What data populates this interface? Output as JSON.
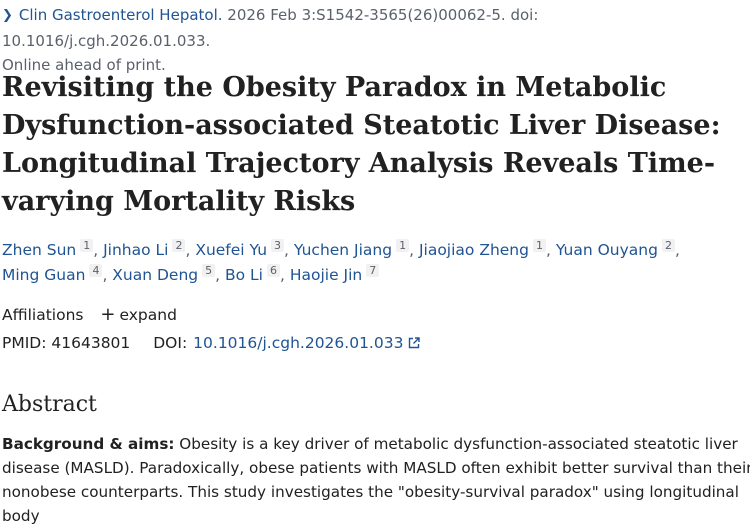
{
  "citation": {
    "journal": "Clin Gastroenterol Hepatol.",
    "details": " 2026 Feb 3:S1542-3565(26)00062-5. doi: 10.1016/j.cgh.2026.01.033.",
    "status": "Online ahead of print."
  },
  "title": "Revisiting the Obesity Paradox in Metabolic Dysfunction-associated Steatotic Liver Disease: Longitudinal Trajectory Analysis Reveals Time-varying Mortality Risks",
  "authors": [
    {
      "name": "Zhen Sun",
      "aff": "1"
    },
    {
      "name": "Jinhao Li",
      "aff": "2"
    },
    {
      "name": "Xuefei Yu",
      "aff": "3"
    },
    {
      "name": "Yuchen Jiang",
      "aff": "1"
    },
    {
      "name": "Jiaojiao Zheng",
      "aff": "1"
    },
    {
      "name": "Yuan Ouyang",
      "aff": "2"
    },
    {
      "name": "Ming Guan",
      "aff": "4"
    },
    {
      "name": "Xuan Deng",
      "aff": "5"
    },
    {
      "name": "Bo Li",
      "aff": "6"
    },
    {
      "name": "Haojie Jin",
      "aff": "7"
    }
  ],
  "affiliations": {
    "label": "Affiliations",
    "expand_label": "expand"
  },
  "ids": {
    "pmid_label": "PMID:",
    "pmid": "41643801",
    "doi_label": "DOI:",
    "doi": "10.1016/j.cgh.2026.01.033"
  },
  "abstract": {
    "heading": "Abstract",
    "bg_label": "Background & aims:",
    "bg_text": " Obesity is a key driver of metabolic dysfunction-associated steatotic liver disease (MASLD). Paradoxically, obese patients with MASLD often exhibit better survival than their nonobese counterparts. This study investigates the \"obesity-survival paradox\" using longitudinal body"
  },
  "colors": {
    "link": "#205493",
    "text": "#212121",
    "muted": "#5b616b"
  },
  "icons": [
    "chevron-right-icon",
    "plus-icon",
    "external-link-icon"
  ]
}
